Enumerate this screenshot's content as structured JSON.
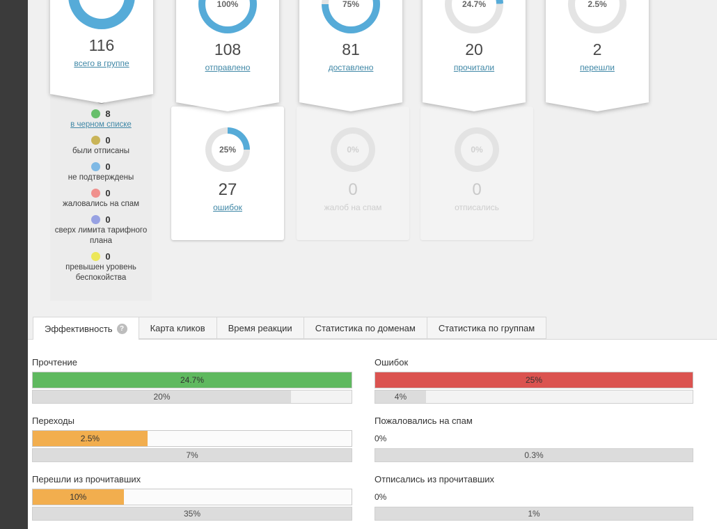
{
  "colors": {
    "accent_blue": "#56abd8",
    "green": "#5fb95f",
    "orange": "#f2ae4e",
    "red": "#db5350",
    "link": "#3f87a6"
  },
  "misc": {
    "help_glyph": "?"
  },
  "top_cards": [
    {
      "id": "total",
      "percent": "",
      "value": "116",
      "label": "всего в группе",
      "donut_percent": 100,
      "big": true
    },
    {
      "id": "sent",
      "percent": "100%",
      "value": "108",
      "label": "отправлено",
      "donut_percent": 100,
      "big": false
    },
    {
      "id": "delivered",
      "percent": "75%",
      "value": "81",
      "label": "доставлено",
      "donut_percent": 75,
      "big": false
    },
    {
      "id": "read",
      "percent": "24.7%",
      "value": "20",
      "label": "прочитали",
      "donut_percent": 24.7,
      "big": false
    },
    {
      "id": "clicked",
      "percent": "2.5%",
      "value": "2",
      "label": "перешли",
      "donut_percent": 2.5,
      "big": false
    }
  ],
  "legend": {
    "items": [
      {
        "color": "#67bf6b",
        "value": "8",
        "label": "в черном списке",
        "link": true
      },
      {
        "color": "#c9b458",
        "value": "0",
        "label": "были отписаны",
        "link": false
      },
      {
        "color": "#7fb9e5",
        "value": "0",
        "label": "не подтверждены",
        "link": false
      },
      {
        "color": "#f0908d",
        "value": "0",
        "label": "жаловались на спам",
        "link": false
      },
      {
        "color": "#97a1e2",
        "value": "0",
        "label": "сверх лимита тарифного плана",
        "link": false
      },
      {
        "color": "#ece75a",
        "value": "0",
        "label": "превышен уровень беспокойства",
        "link": false
      }
    ]
  },
  "mid_cards": [
    {
      "id": "errors",
      "percent": "25%",
      "value": "27",
      "label": "ошибок",
      "donut_percent": 25,
      "muted": false
    },
    {
      "id": "spam-complaints",
      "percent": "0%",
      "value": "0",
      "label": "жалоб на спам",
      "donut_percent": 0,
      "muted": true
    },
    {
      "id": "unsubscribed",
      "percent": "0%",
      "value": "0",
      "label": "отписались",
      "donut_percent": 0,
      "muted": true
    }
  ],
  "tabs": [
    {
      "id": "effectiveness",
      "label": "Эффективность",
      "active": true,
      "help": true
    },
    {
      "id": "click-map",
      "label": "Карта кликов",
      "active": false,
      "help": false
    },
    {
      "id": "reaction-time",
      "label": "Время реакции",
      "active": false,
      "help": false
    },
    {
      "id": "domain-stats",
      "label": "Статистика по доменам",
      "active": false,
      "help": false
    },
    {
      "id": "group-stats",
      "label": "Статистика по группам",
      "active": false,
      "help": false
    }
  ],
  "chart_data": {
    "type": "bar",
    "title": "Эффективность",
    "note": "colored bar = this campaign value, gray bar = comparison average; widths scaled to the larger of the pair",
    "columns": {
      "left": [
        {
          "title": "Прочтение",
          "value": 24.7,
          "value_label": "24.7%",
          "value_color": "green",
          "value_width_pct": 100,
          "average": 20,
          "avg_label": "20%",
          "avg_width_pct": 81
        },
        {
          "title": "Переходы",
          "value": 2.5,
          "value_label": "2.5%",
          "value_color": "orange",
          "value_width_pct": 36,
          "average": 7,
          "avg_label": "7%",
          "avg_width_pct": 100
        },
        {
          "title": "Перешли из прочитавших",
          "value": 10,
          "value_label": "10%",
          "value_color": "orange",
          "value_width_pct": 28.5,
          "average": 35,
          "avg_label": "35%",
          "avg_width_pct": 100
        }
      ],
      "right": [
        {
          "title": "Ошибок",
          "value": 25,
          "value_label": "25%",
          "value_color": "red",
          "value_width_pct": 100,
          "average": 4,
          "avg_label": "4%",
          "avg_width_pct": 16
        },
        {
          "title": "Пожаловались на спам",
          "value": 0,
          "value_label": "0%",
          "value_color": null,
          "value_width_pct": 0,
          "average": 0.3,
          "avg_label": "0.3%",
          "avg_width_pct": 100
        },
        {
          "title": "Отписались из прочитавших",
          "value": 0,
          "value_label": "0%",
          "value_color": null,
          "value_width_pct": 0,
          "average": 1,
          "avg_label": "1%",
          "avg_width_pct": 100
        }
      ]
    }
  }
}
